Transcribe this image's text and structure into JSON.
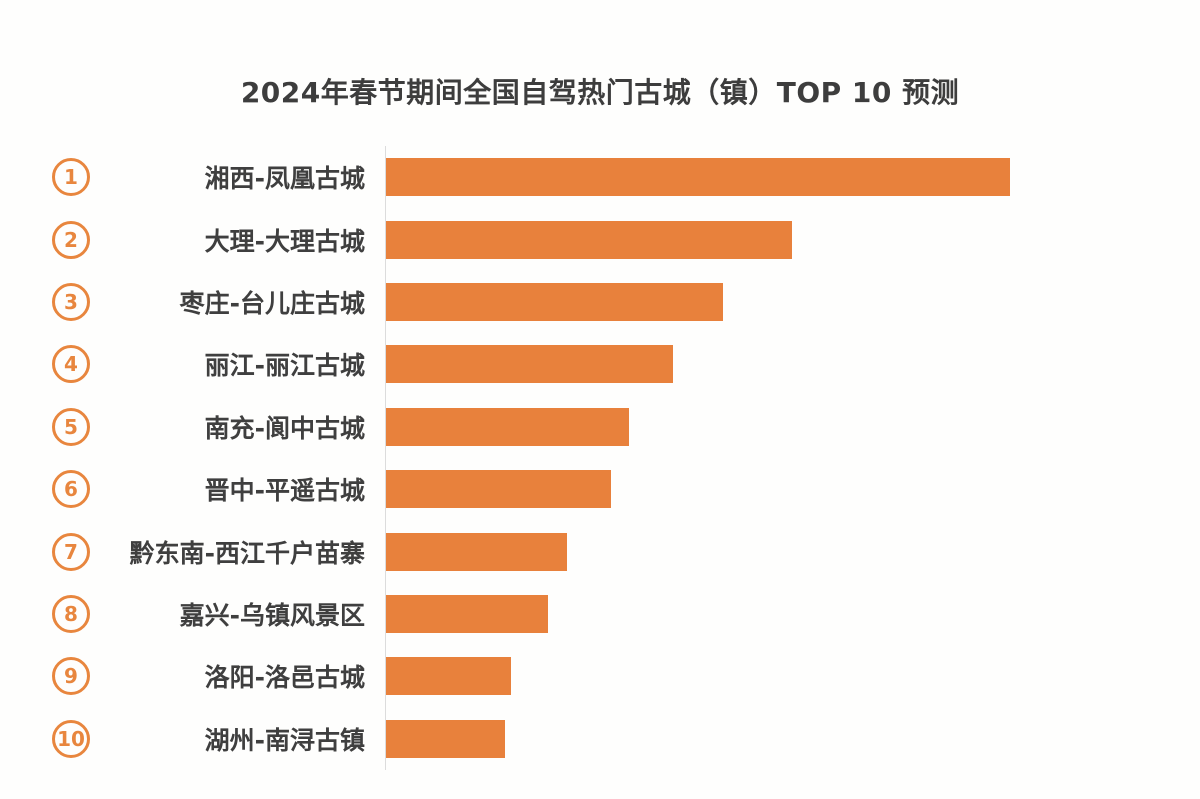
{
  "chart_data": {
    "type": "bar",
    "orientation": "horizontal",
    "title": "2024年春节期间全国自驾热门古城（镇）TOP 10 预测",
    "xlabel": "",
    "ylabel": "",
    "grid": false,
    "value_labels_shown": false,
    "xlim": [
      0,
      100
    ],
    "bar_color": "#e8813c",
    "rank_badge_color": "#e8863e",
    "title_color": "#3d3d3d",
    "label_color": "#3f3f3f",
    "axis_line_color": "#dcdcdc",
    "categories": [
      "湘西-凤凰古城",
      "大理-大理古城",
      "枣庄-台儿庄古城",
      "丽江-丽江古城",
      "南充-阆中古城",
      "晋中-平遥古城",
      "黔东南-西江千户苗寨",
      "嘉兴-乌镇风景区",
      "洛阳-洛邑古城",
      "湖州-南浔古镇"
    ],
    "values": [
      100,
      65,
      54,
      46,
      39,
      36,
      29,
      26,
      20,
      19
    ],
    "rows": [
      {
        "rank": "1",
        "label": "湘西-凤凰古城",
        "value": 100
      },
      {
        "rank": "2",
        "label": "大理-大理古城",
        "value": 65
      },
      {
        "rank": "3",
        "label": "枣庄-台儿庄古城",
        "value": 54
      },
      {
        "rank": "4",
        "label": "丽江-丽江古城",
        "value": 46
      },
      {
        "rank": "5",
        "label": "南充-阆中古城",
        "value": 39
      },
      {
        "rank": "6",
        "label": "晋中-平遥古城",
        "value": 36
      },
      {
        "rank": "7",
        "label": "黔东南-西江千户苗寨",
        "value": 29
      },
      {
        "rank": "8",
        "label": "嘉兴-乌镇风景区",
        "value": 26
      },
      {
        "rank": "9",
        "label": "洛阳-洛邑古城",
        "value": 20
      },
      {
        "rank": "10",
        "label": "湖州-南浔古镇",
        "value": 19
      }
    ]
  }
}
